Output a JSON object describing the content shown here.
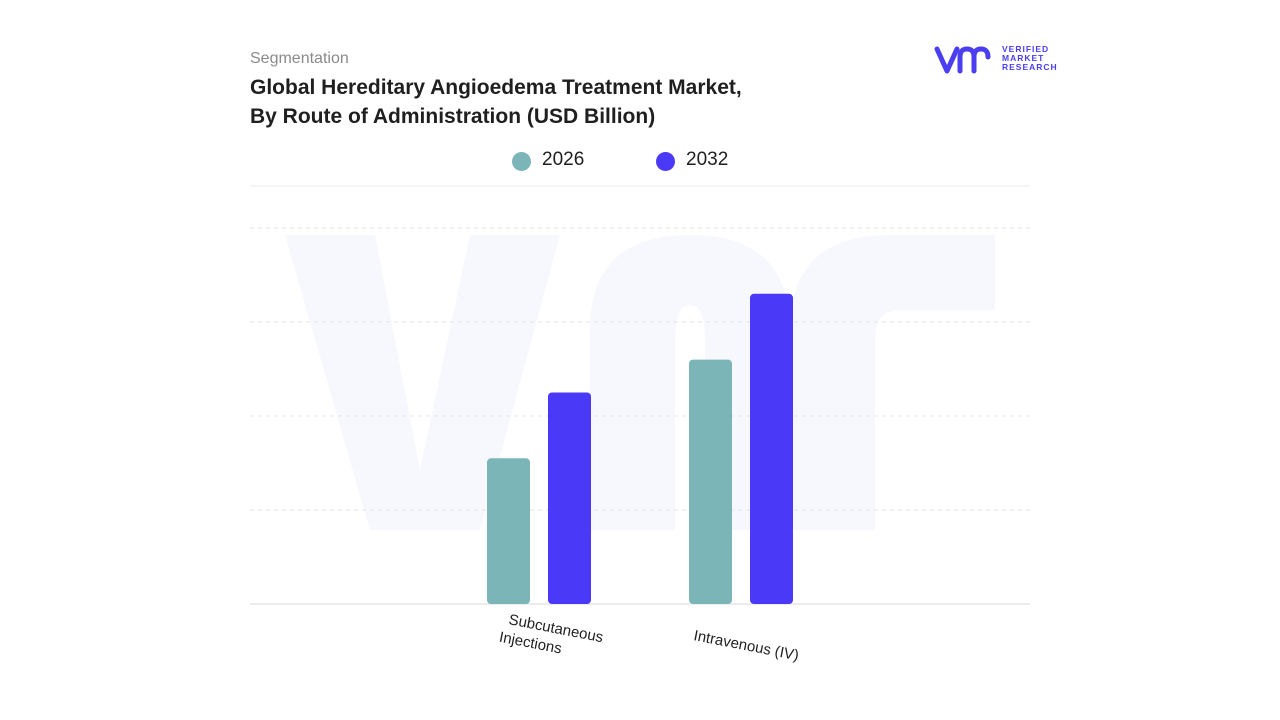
{
  "header": {
    "subtitle": "Segmentation",
    "title_line1": "Global Hereditary Angioedema Treatment Market,",
    "title_line2": "By Route of Administration (USD Billion)"
  },
  "logo": {
    "mark": "vmr",
    "line1": "VERIFIED",
    "line2": "MARKET",
    "line3": "RESEARCH",
    "color": "#4a3ef0"
  },
  "chart_data": {
    "type": "bar",
    "categories": [
      "Subcutaneous Injections",
      "Intravenous (IV)"
    ],
    "category_lines": [
      [
        "Subcutaneous",
        "Injections"
      ],
      [
        "Intravenous (IV)"
      ]
    ],
    "series": [
      {
        "name": "2026",
        "color": "#7bb5b8",
        "values": [
          1.55,
          2.6
        ]
      },
      {
        "name": "2032",
        "color": "#4a3af7",
        "values": [
          2.25,
          3.3
        ]
      }
    ],
    "ylim": [
      0,
      4
    ],
    "grid": true,
    "legend_position": "top-center",
    "xlabel": "",
    "ylabel": ""
  }
}
